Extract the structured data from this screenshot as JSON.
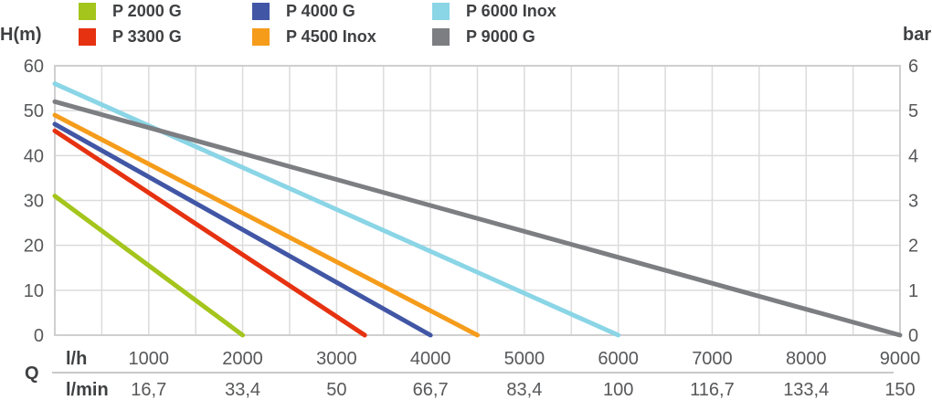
{
  "labels": {
    "y_left": "H(m)",
    "y_right": "bar",
    "q": "Q",
    "lh": "l/h",
    "lmin": "l/min"
  },
  "colors": {
    "background": "#ffffff",
    "grid": "#dcdcdc",
    "plot_border": "#cfcfcf",
    "tick_text": "#57585a",
    "label_text": "#3f4042",
    "divider": "#c9c9c9"
  },
  "chart_data": {
    "type": "line",
    "title": "",
    "grid": true,
    "legend_position": "top",
    "x_axis": {
      "label": "Q",
      "unit_primary": "l/h",
      "unit_secondary": "l/min",
      "min": 0,
      "max": 9000,
      "gridline_step": 500
    },
    "y_axis_left": {
      "label": "H(m)",
      "min": 0,
      "max": 60,
      "tick_step": 10,
      "tick_labels": [
        "0",
        "10",
        "20",
        "30",
        "40",
        "50",
        "60"
      ]
    },
    "y_axis_right": {
      "label": "bar",
      "min": 0,
      "max": 6,
      "tick_step": 1,
      "tick_labels": [
        "0",
        "1",
        "2",
        "3",
        "4",
        "5",
        "6"
      ]
    },
    "x_ticks": [
      {
        "value": 1000,
        "lh": "1000",
        "lmin": "16,7"
      },
      {
        "value": 2000,
        "lh": "2000",
        "lmin": "33,4"
      },
      {
        "value": 3000,
        "lh": "3000",
        "lmin": "50"
      },
      {
        "value": 4000,
        "lh": "4000",
        "lmin": "66,7"
      },
      {
        "value": 5000,
        "lh": "5000",
        "lmin": "83,4"
      },
      {
        "value": 6000,
        "lh": "6000",
        "lmin": "100"
      },
      {
        "value": 7000,
        "lh": "7000",
        "lmin": "116,7"
      },
      {
        "value": 8000,
        "lh": "8000",
        "lmin": "133,4"
      },
      {
        "value": 9000,
        "lh": "9000",
        "lmin": "150"
      }
    ],
    "series": [
      {
        "name": "P 2000 G",
        "color": "#a4c51c",
        "points": [
          [
            0,
            31
          ],
          [
            2000,
            0
          ]
        ]
      },
      {
        "name": "P 3300 G",
        "color": "#e63211",
        "points": [
          [
            0,
            45.5
          ],
          [
            3300,
            0
          ]
        ]
      },
      {
        "name": "P 4000 G",
        "color": "#4156a5",
        "points": [
          [
            0,
            47
          ],
          [
            4000,
            0
          ]
        ]
      },
      {
        "name": "P 4500 Inox",
        "color": "#f59c1b",
        "points": [
          [
            0,
            49
          ],
          [
            4500,
            0
          ]
        ]
      },
      {
        "name": "P 6000 Inox",
        "color": "#8ad5e6",
        "points": [
          [
            0,
            56
          ],
          [
            6000,
            0
          ]
        ]
      },
      {
        "name": "P 9000 G",
        "color": "#7c7e82",
        "points": [
          [
            0,
            52
          ],
          [
            9000,
            0
          ]
        ]
      }
    ]
  }
}
